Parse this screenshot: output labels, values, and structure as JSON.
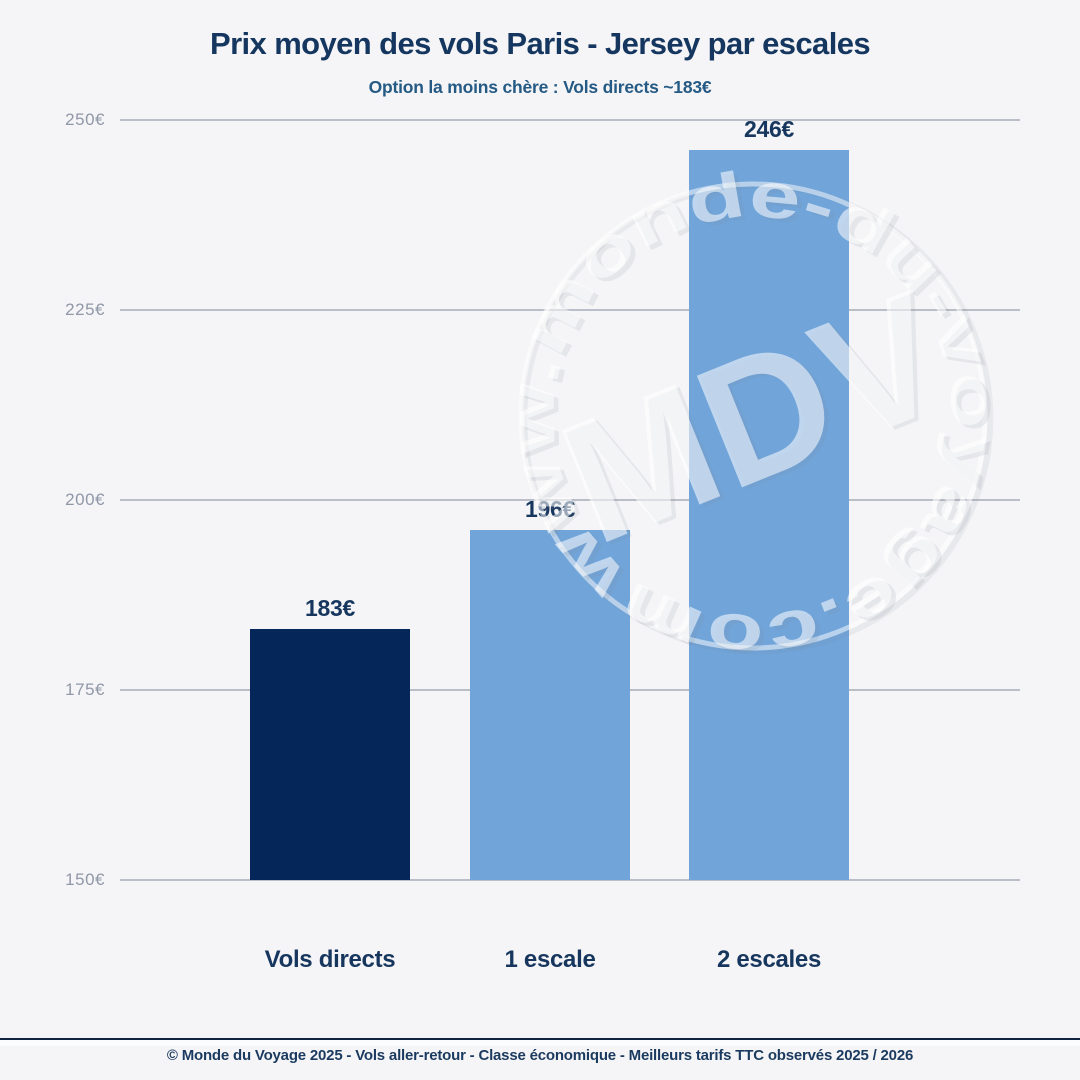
{
  "page": {
    "background": "#f5f5f7"
  },
  "header": {
    "title": "Prix moyen des vols Paris - Jersey par escales",
    "subtitle": "Option la moins chère : Vols directs ~183€"
  },
  "chart_data": {
    "type": "bar",
    "categories": [
      "Vols directs",
      "1 escale",
      "2 escales"
    ],
    "values": [
      183,
      196,
      246
    ],
    "value_labels": [
      "183€",
      "196€",
      "246€"
    ],
    "title": "Prix moyen des vols Paris - Jersey par escales",
    "xlabel": "",
    "ylabel": "",
    "ylim": [
      150,
      250
    ],
    "yticks": [
      150,
      175,
      200,
      225,
      250
    ],
    "ytick_labels": [
      "150€",
      "175€",
      "200€",
      "225€",
      "250€"
    ],
    "currency": "€",
    "grid": true,
    "legend": false,
    "bar_colors": [
      "#052658",
      "#71a5da",
      "#71a5da"
    ],
    "gridline_color": "#babec8",
    "label_color": "#16365e",
    "tick_label_color": "#9097a7"
  },
  "watermark": {
    "circle_text": "www.monde-du-voyage.com",
    "center_text": "MDV"
  },
  "footer": {
    "text": "© Monde du Voyage 2025 - Vols aller-retour - Classe économique - Meilleurs tarifs TTC observés 2025 / 2026"
  },
  "colors": {
    "title": "#14365f",
    "subtitle": "#255a85",
    "dark_bar": "#052658",
    "light_bar": "#71a5da",
    "footer_line": "#10243f"
  }
}
